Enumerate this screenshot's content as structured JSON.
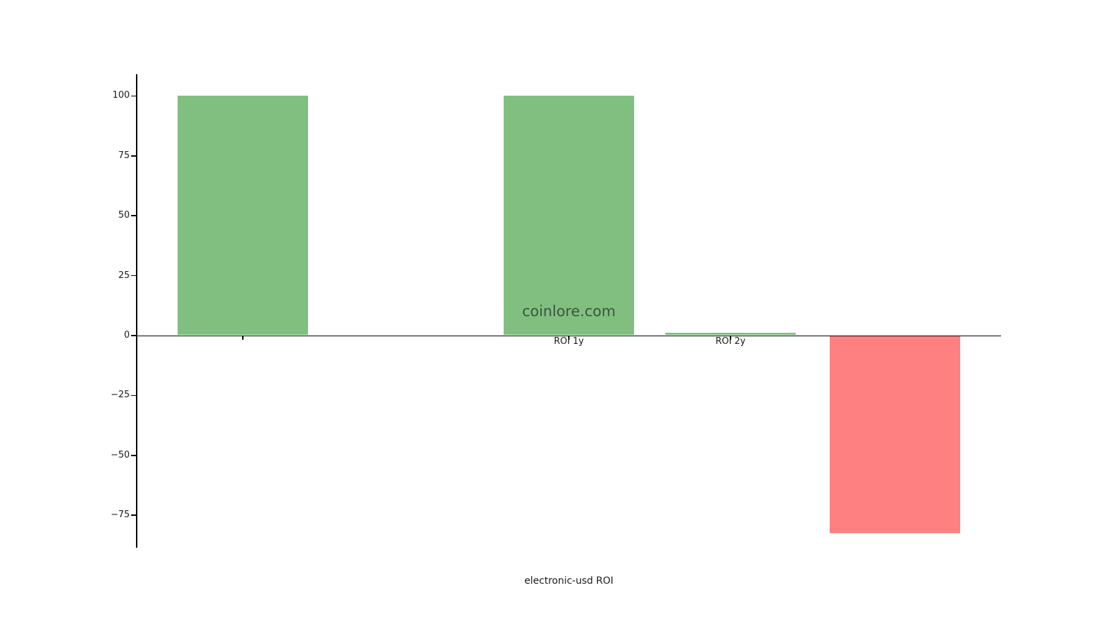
{
  "chart_data": {
    "type": "bar",
    "title": "",
    "xlabel": "electronic-usd ROI",
    "ylabel": "",
    "categories": [
      "",
      "ROI 1y",
      "ROI 2y",
      ""
    ],
    "values": [
      100,
      100,
      1,
      -82.5
    ],
    "bars": [
      {
        "label": "",
        "value": 100,
        "color": "#80bf80",
        "tick": true
      },
      {
        "label": "ROI 1y",
        "value": 100,
        "color": "#80bf80",
        "tick": true
      },
      {
        "label": "ROI 2y",
        "value": 1,
        "color": "#80bf80",
        "tick": true
      },
      {
        "label": "",
        "value": -82.5,
        "color": "#ff8080",
        "tick": false
      }
    ],
    "yticks": [
      100,
      75,
      50,
      25,
      0,
      -25,
      -50,
      -75
    ],
    "ylim": [
      -88,
      109
    ],
    "grid": "off",
    "legend": "none",
    "positive_color": "#80bf80",
    "negative_color": "#ff8080",
    "axis_color": "#000000",
    "text_color": "#1a1a1a",
    "watermark": {
      "text": "coinlore.com",
      "color": "rgba(0,0,0,0.55)"
    }
  }
}
